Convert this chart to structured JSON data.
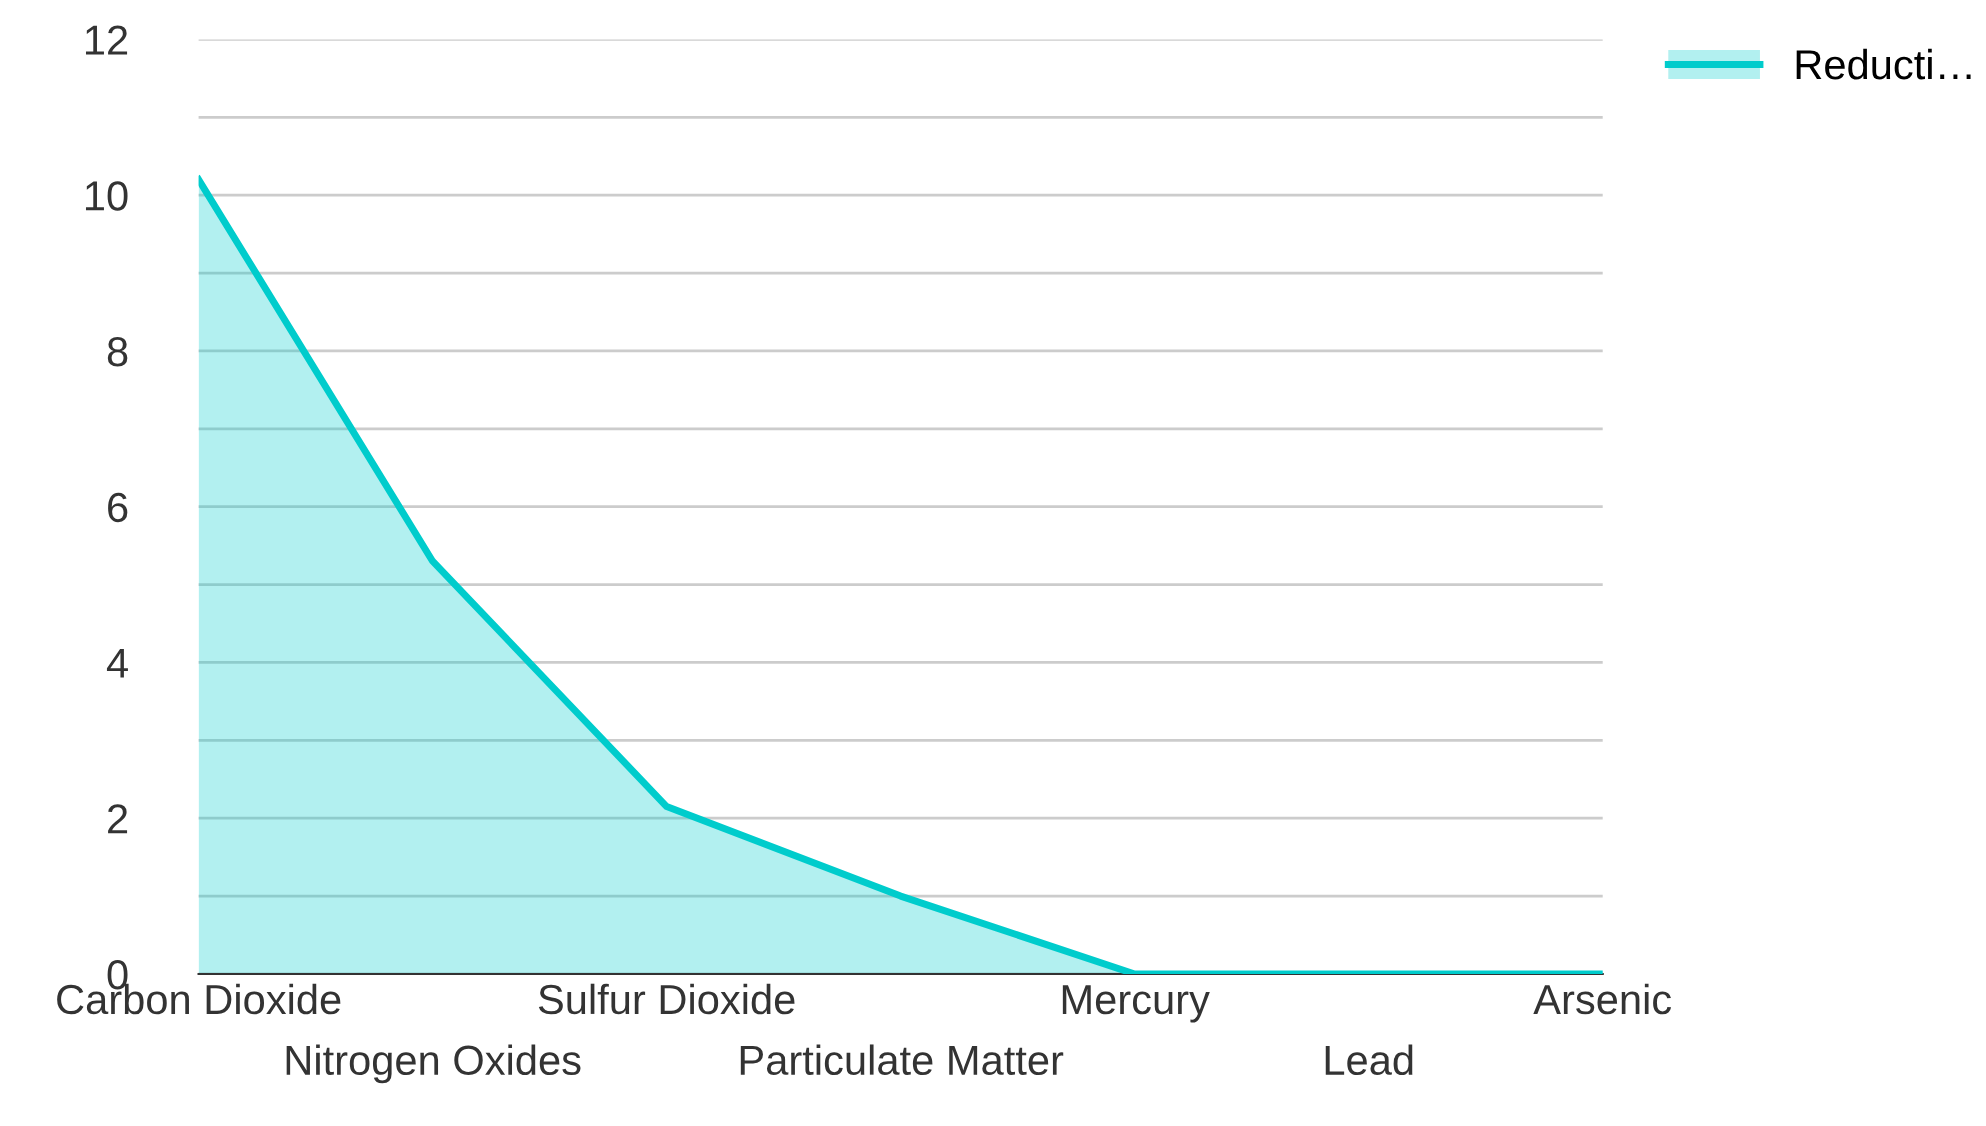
{
  "chart_data": {
    "type": "area",
    "categories": [
      "Carbon Dioxide",
      "Nitrogen Oxides",
      "Sulfur Dioxide",
      "Particulate Matter",
      "Mercury",
      "Lead",
      "Arsenic"
    ],
    "series": [
      {
        "name": "Reducti…",
        "color": "#00cccc",
        "values": [
          10.2,
          5.3,
          2.15,
          1.0,
          0,
          0,
          0
        ]
      }
    ],
    "ylim": [
      0,
      12
    ],
    "yticks": [
      0,
      {
        "value": 1,
        "label": null
      },
      2,
      {
        "value": 3,
        "label": null
      },
      4,
      {
        "value": 5,
        "label": null
      },
      6,
      {
        "value": 7,
        "label": null
      },
      8,
      {
        "value": 9,
        "label": null
      },
      10,
      {
        "value": 11,
        "label": null
      },
      12
    ],
    "grid": "y",
    "legend": "top right"
  }
}
